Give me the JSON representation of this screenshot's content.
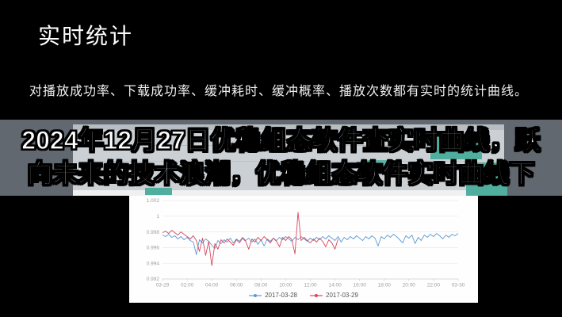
{
  "header": {
    "title": "实时统计",
    "description": "对播放成功率、下载成功率、缓冲耗时、缓冲概率、播放次数都有实时的统计曲线。"
  },
  "headline": {
    "line1": "2024年12月27日优稳组态软件查实时曲线，跃",
    "line2": "向未来的技术浪潮，优稳组态软件实时曲线下"
  },
  "colors": {
    "band_bg": "#62686f",
    "band_panel": "#cbd0d4",
    "teal_accent": "#4fae9e",
    "series_blue": "#5b9bd5",
    "series_red": "#d9485c",
    "grid_line": "#e8e8e8",
    "axis_line": "#cccccc",
    "axis_text": "#9aa0a6"
  },
  "chart_data": {
    "type": "line",
    "title": "",
    "xlabel": "",
    "ylabel": "",
    "grid": true,
    "legend_position": "bottom",
    "x_axis": {
      "ticks_minutes": [
        0,
        120,
        240,
        360,
        480,
        600,
        720,
        840,
        960,
        1080,
        1200,
        1320,
        1440
      ],
      "tick_labels": [
        "03-29",
        "02:00",
        "04:00",
        "06:00",
        "08:00",
        "10:00",
        "12:00",
        "14:00",
        "16:00",
        "18:00",
        "20:00",
        "22:00",
        "03-30"
      ]
    },
    "y_axis": {
      "range": [
        0.992,
        1.002
      ],
      "ticks": [
        0.992,
        0.994,
        0.996,
        0.998,
        1,
        1.002
      ],
      "tick_labels": [
        "0.992",
        "0.994",
        "0.996",
        "0.998",
        "1",
        "1.002"
      ]
    },
    "series": [
      {
        "name": "2017-03-28",
        "color": "#5b9bd5",
        "start_min": 0,
        "step_min": 15,
        "values": [
          0.9976,
          0.9974,
          0.9977,
          0.9973,
          0.9975,
          0.9971,
          0.9974,
          0.997,
          0.9973,
          0.9969,
          0.9967,
          0.9951,
          0.997,
          0.9966,
          0.9971,
          0.9968,
          0.9963,
          0.9959,
          0.9969,
          0.9965,
          0.997,
          0.9967,
          0.9972,
          0.9966,
          0.9971,
          0.9968,
          0.9973,
          0.9969,
          0.9972,
          0.9967,
          0.9971,
          0.9964,
          0.997,
          0.9962,
          0.9971,
          0.9968,
          0.9972,
          0.9969,
          0.9973,
          0.997,
          0.9974,
          0.9971,
          0.9968,
          0.9973,
          0.997,
          0.9974,
          0.9971,
          0.9968,
          0.9972,
          0.9969,
          0.9973,
          0.997,
          0.9974,
          0.9971,
          0.9975,
          0.9972,
          0.9969,
          0.9974,
          0.9967,
          0.9973,
          0.997,
          0.9974,
          0.9971,
          0.9975,
          0.9972,
          0.9969,
          0.9974,
          0.9971,
          0.9975,
          0.9972,
          0.9962,
          0.9974,
          0.9971,
          0.9976,
          0.9973,
          0.9977,
          0.9974,
          0.997,
          0.9966,
          0.9975,
          0.9972,
          0.9976,
          0.9965,
          0.9973,
          0.9969,
          0.9976,
          0.9973,
          0.9977,
          0.9974,
          0.9978,
          0.9975,
          0.9971,
          0.9976,
          0.9973,
          0.9977,
          0.9975,
          0.9978
        ]
      },
      {
        "name": "2017-03-29",
        "color": "#d9485c",
        "start_min": 0,
        "step_min": 15,
        "values": [
          0.9979,
          0.9981,
          0.9978,
          0.9982,
          0.9979,
          0.9976,
          0.998,
          0.9977,
          0.9974,
          0.9971,
          0.9975,
          0.9969,
          0.9955,
          0.9972,
          0.995,
          0.9968,
          0.9937,
          0.9965,
          0.9958,
          0.997,
          0.9966,
          0.9971,
          0.9967,
          0.9963,
          0.997,
          0.9966,
          0.9972,
          0.9968,
          0.9958,
          0.9971,
          0.9967,
          0.9973,
          0.9969,
          0.9974,
          0.997,
          0.9966,
          0.9972,
          0.9968,
          0.9961,
          0.9973,
          0.9969,
          0.9974,
          0.997,
          0.9952,
          1.0005,
          0.9969,
          0.9973,
          0.9969,
          0.9966,
          0.9971,
          0.9967,
          0.9972,
          0.9968,
          0.9961,
          0.997,
          0.9966,
          0.9958,
          0.9971
        ]
      }
    ]
  }
}
